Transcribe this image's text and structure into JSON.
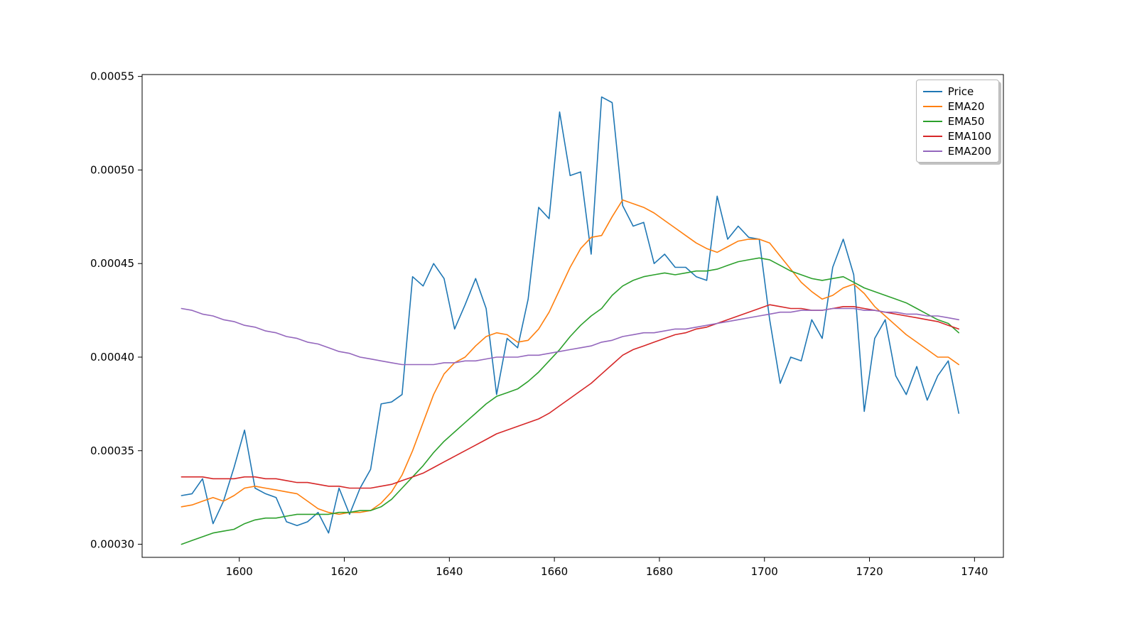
{
  "page": {
    "background": "#ffffff"
  },
  "chart_data": {
    "type": "line",
    "title": "",
    "xlabel": "",
    "ylabel": "",
    "grid": false,
    "legend_position": "upper right",
    "xlim": [
      1581.5,
      1745.5
    ],
    "ylim": [
      0.000293,
      0.000551
    ],
    "xticks": [
      1600,
      1620,
      1640,
      1660,
      1680,
      1700,
      1720,
      1740
    ],
    "yticks": [
      0.0003,
      0.00035,
      0.0004,
      0.00045,
      0.0005,
      0.00055
    ],
    "ytick_labels": [
      "0.00030",
      "0.00035",
      "0.00040",
      "0.00045",
      "0.00050",
      "0.00055"
    ],
    "x": [
      1589,
      1591,
      1593,
      1595,
      1597,
      1599,
      1601,
      1603,
      1605,
      1607,
      1609,
      1611,
      1613,
      1615,
      1617,
      1619,
      1621,
      1623,
      1625,
      1627,
      1629,
      1631,
      1633,
      1635,
      1637,
      1639,
      1641,
      1643,
      1645,
      1647,
      1649,
      1651,
      1653,
      1655,
      1657,
      1659,
      1661,
      1663,
      1665,
      1667,
      1669,
      1671,
      1673,
      1675,
      1677,
      1679,
      1681,
      1683,
      1685,
      1687,
      1689,
      1691,
      1693,
      1695,
      1697,
      1699,
      1701,
      1703,
      1705,
      1707,
      1709,
      1711,
      1713,
      1715,
      1717,
      1719,
      1721,
      1723,
      1725,
      1727,
      1729,
      1731,
      1733,
      1735,
      1737
    ],
    "series": [
      {
        "name": "Price",
        "color": "#1f77b4",
        "values": [
          0.000326,
          0.000327,
          0.000335,
          0.000311,
          0.000323,
          0.000341,
          0.000361,
          0.00033,
          0.000327,
          0.000325,
          0.000312,
          0.00031,
          0.000312,
          0.000317,
          0.000306,
          0.00033,
          0.000316,
          0.00033,
          0.00034,
          0.000375,
          0.000376,
          0.00038,
          0.000443,
          0.000438,
          0.00045,
          0.000442,
          0.000415,
          0.000428,
          0.000442,
          0.000426,
          0.00038,
          0.00041,
          0.000405,
          0.000431,
          0.00048,
          0.000474,
          0.000531,
          0.000497,
          0.000499,
          0.000455,
          0.000539,
          0.000536,
          0.000481,
          0.00047,
          0.000472,
          0.00045,
          0.000455,
          0.000448,
          0.000448,
          0.000443,
          0.000441,
          0.000486,
          0.000463,
          0.00047,
          0.000464,
          0.000463,
          0.00042,
          0.000386,
          0.0004,
          0.000398,
          0.00042,
          0.00041,
          0.000448,
          0.000463,
          0.000444,
          0.000371,
          0.00041,
          0.00042,
          0.00039,
          0.00038,
          0.000395,
          0.000377,
          0.00039,
          0.000398,
          0.00037
        ]
      },
      {
        "name": "EMA20",
        "color": "#ff7f0e",
        "values": [
          0.00032,
          0.000321,
          0.000323,
          0.000325,
          0.000323,
          0.000326,
          0.00033,
          0.000331,
          0.00033,
          0.000329,
          0.000328,
          0.000327,
          0.000323,
          0.000319,
          0.000317,
          0.000316,
          0.000317,
          0.000317,
          0.000318,
          0.000322,
          0.000328,
          0.000337,
          0.00035,
          0.000365,
          0.00038,
          0.000391,
          0.000397,
          0.0004,
          0.000406,
          0.000411,
          0.000413,
          0.000412,
          0.000408,
          0.000409,
          0.000415,
          0.000424,
          0.000436,
          0.000448,
          0.000458,
          0.000464,
          0.000465,
          0.000475,
          0.000484,
          0.000482,
          0.00048,
          0.000477,
          0.000473,
          0.000469,
          0.000465,
          0.000461,
          0.000458,
          0.000456,
          0.000459,
          0.000462,
          0.000463,
          0.000463,
          0.000461,
          0.000454,
          0.000447,
          0.00044,
          0.000435,
          0.000431,
          0.000433,
          0.000437,
          0.000439,
          0.000434,
          0.000427,
          0.000422,
          0.000417,
          0.000412,
          0.000408,
          0.000404,
          0.0004,
          0.0004,
          0.000396
        ]
      },
      {
        "name": "EMA50",
        "color": "#2ca02c",
        "values": [
          0.0003,
          0.000302,
          0.000304,
          0.000306,
          0.000307,
          0.000308,
          0.000311,
          0.000313,
          0.000314,
          0.000314,
          0.000315,
          0.000316,
          0.000316,
          0.000316,
          0.000316,
          0.000317,
          0.000317,
          0.000318,
          0.000318,
          0.00032,
          0.000324,
          0.00033,
          0.000336,
          0.000342,
          0.000349,
          0.000355,
          0.00036,
          0.000365,
          0.00037,
          0.000375,
          0.000379,
          0.000381,
          0.000383,
          0.000387,
          0.000392,
          0.000398,
          0.000404,
          0.000411,
          0.000417,
          0.000422,
          0.000426,
          0.000433,
          0.000438,
          0.000441,
          0.000443,
          0.000444,
          0.000445,
          0.000444,
          0.000445,
          0.000446,
          0.000446,
          0.000447,
          0.000449,
          0.000451,
          0.000452,
          0.000453,
          0.000452,
          0.000449,
          0.000446,
          0.000444,
          0.000442,
          0.000441,
          0.000442,
          0.000443,
          0.00044,
          0.000437,
          0.000435,
          0.000433,
          0.000431,
          0.000429,
          0.000426,
          0.000423,
          0.00042,
          0.000418,
          0.000413
        ]
      },
      {
        "name": "EMA100",
        "color": "#d62728",
        "values": [
          0.000336,
          0.000336,
          0.000336,
          0.000335,
          0.000335,
          0.000335,
          0.000336,
          0.000336,
          0.000335,
          0.000335,
          0.000334,
          0.000333,
          0.000333,
          0.000332,
          0.000331,
          0.000331,
          0.00033,
          0.00033,
          0.00033,
          0.000331,
          0.000332,
          0.000334,
          0.000336,
          0.000338,
          0.000341,
          0.000344,
          0.000347,
          0.00035,
          0.000353,
          0.000356,
          0.000359,
          0.000361,
          0.000363,
          0.000365,
          0.000367,
          0.00037,
          0.000374,
          0.000378,
          0.000382,
          0.000386,
          0.000391,
          0.000396,
          0.000401,
          0.000404,
          0.000406,
          0.000408,
          0.00041,
          0.000412,
          0.000413,
          0.000415,
          0.000416,
          0.000418,
          0.00042,
          0.000422,
          0.000424,
          0.000426,
          0.000428,
          0.000427,
          0.000426,
          0.000426,
          0.000425,
          0.000425,
          0.000426,
          0.000427,
          0.000427,
          0.000426,
          0.000425,
          0.000424,
          0.000423,
          0.000422,
          0.000421,
          0.00042,
          0.000419,
          0.000417,
          0.000415
        ]
      },
      {
        "name": "EMA200",
        "color": "#9467bd",
        "values": [
          0.000426,
          0.000425,
          0.000423,
          0.000422,
          0.00042,
          0.000419,
          0.000417,
          0.000416,
          0.000414,
          0.000413,
          0.000411,
          0.00041,
          0.000408,
          0.000407,
          0.000405,
          0.000403,
          0.000402,
          0.0004,
          0.000399,
          0.000398,
          0.000397,
          0.000396,
          0.000396,
          0.000396,
          0.000396,
          0.000397,
          0.000397,
          0.000398,
          0.000398,
          0.000399,
          0.0004,
          0.0004,
          0.0004,
          0.000401,
          0.000401,
          0.000402,
          0.000403,
          0.000404,
          0.000405,
          0.000406,
          0.000408,
          0.000409,
          0.000411,
          0.000412,
          0.000413,
          0.000413,
          0.000414,
          0.000415,
          0.000415,
          0.000416,
          0.000417,
          0.000418,
          0.000419,
          0.00042,
          0.000421,
          0.000422,
          0.000423,
          0.000424,
          0.000424,
          0.000425,
          0.000425,
          0.000425,
          0.000426,
          0.000426,
          0.000426,
          0.000425,
          0.000425,
          0.000424,
          0.000424,
          0.000423,
          0.000423,
          0.000422,
          0.000422,
          0.000421,
          0.00042
        ]
      }
    ]
  }
}
